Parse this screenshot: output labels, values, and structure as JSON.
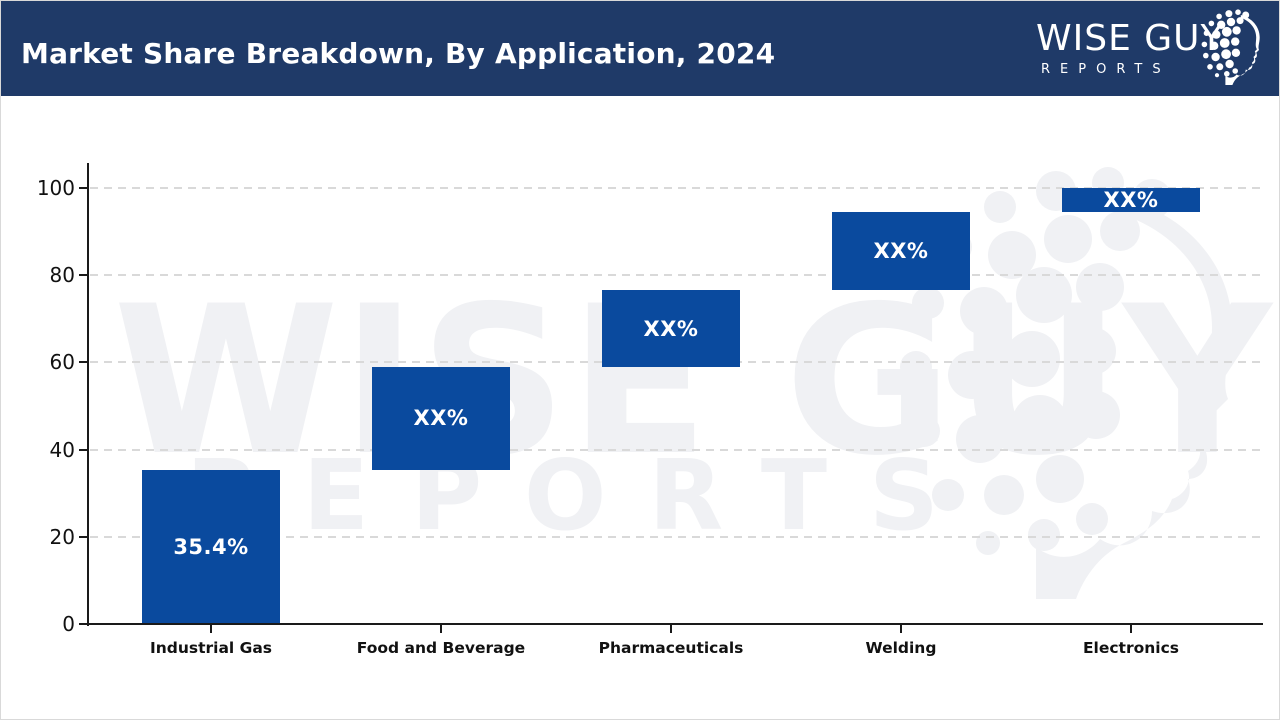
{
  "header": {
    "title": "Market Share Breakdown, By Application, 2024",
    "logo": {
      "wordmark": "WISE GUY",
      "subtext": "REPORTS"
    }
  },
  "watermark": {
    "line1": "WISE GUY",
    "line2": "REPORTS"
  },
  "colors": {
    "header_bg": "#1f3a68",
    "bar_fill": "#0a4a9e",
    "bar_label": "#ffffff",
    "grid_line": "#d9d9d9",
    "axis_line": "#1a1a1a",
    "tick_label": "#111111",
    "watermark": "#f0f1f4"
  },
  "chart_data": {
    "type": "bar",
    "variant": "waterfall",
    "title": "Market Share Breakdown, By Application, 2024",
    "categories": [
      "Industrial Gas",
      "Food and Beverage",
      "Pharmaceuticals",
      "Welding",
      "Electronics"
    ],
    "bars": [
      {
        "category": "Industrial Gas",
        "start": 0,
        "end": 35.4,
        "value": 35.4,
        "label": "35.4%"
      },
      {
        "category": "Food and Beverage",
        "start": 35.4,
        "end": 58.9,
        "value": 23.5,
        "label": "XX%"
      },
      {
        "category": "Pharmaceuticals",
        "start": 58.9,
        "end": 76.6,
        "value": 17.7,
        "label": "XX%"
      },
      {
        "category": "Welding",
        "start": 76.6,
        "end": 94.4,
        "value": 17.8,
        "label": "XX%"
      },
      {
        "category": "Electronics",
        "start": 94.4,
        "end": 100,
        "value": 5.6,
        "label": "XX%"
      }
    ],
    "yticks": [
      0,
      20,
      40,
      60,
      80,
      100
    ],
    "ylim": [
      0,
      105
    ],
    "xlabel": "",
    "ylabel": "",
    "grid": "horizontal-dashed",
    "legend": "none"
  }
}
